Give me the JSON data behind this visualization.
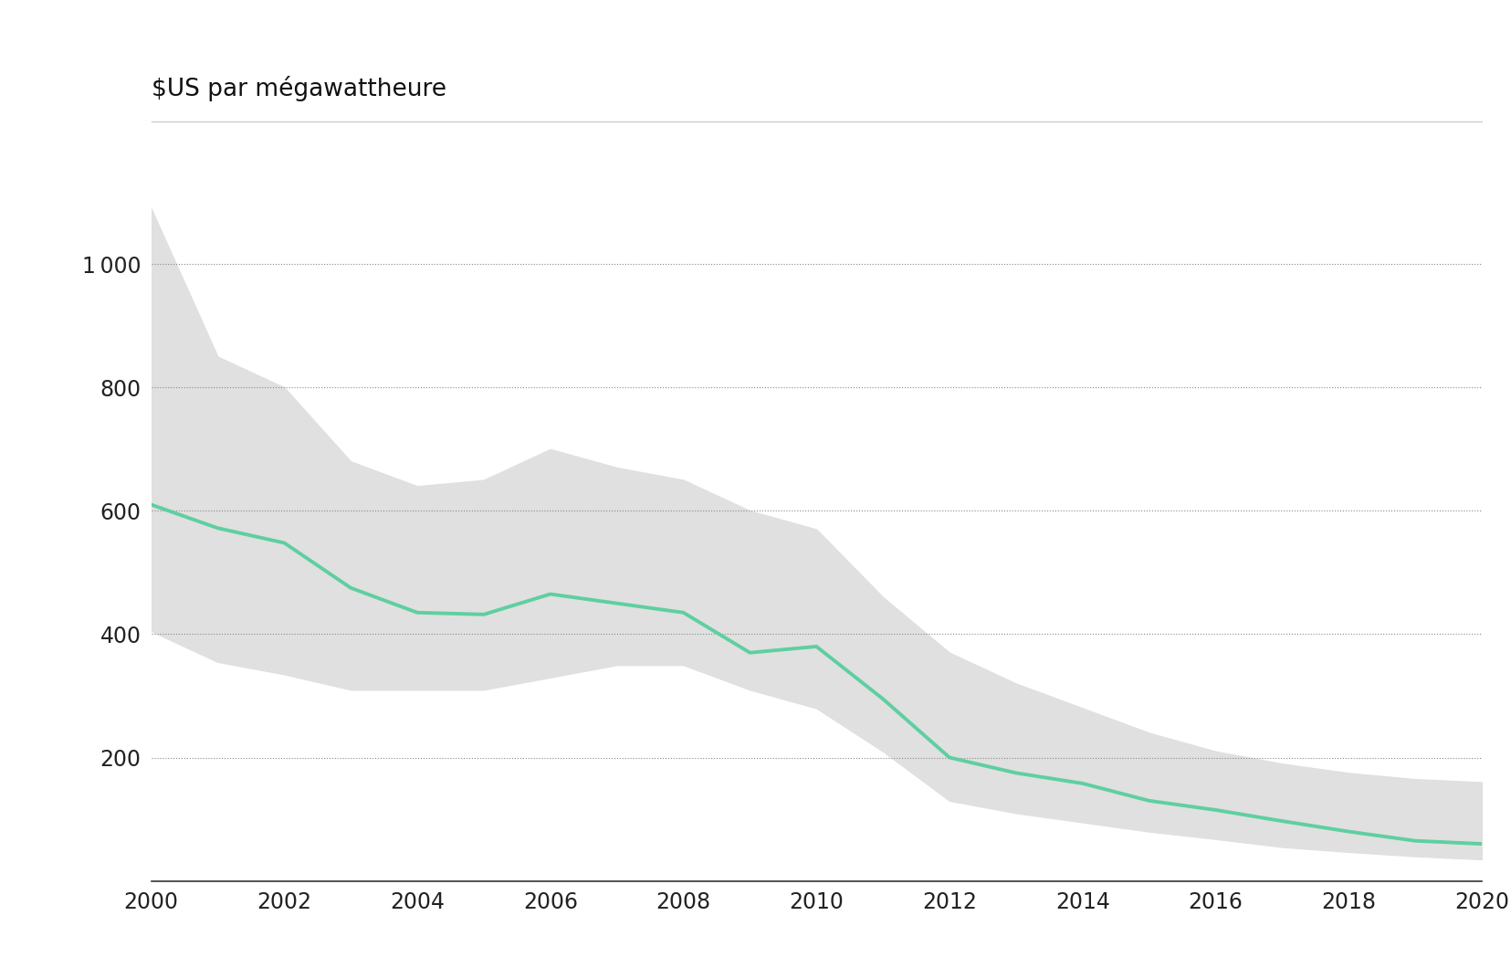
{
  "title": "$US par mégawattheure",
  "title_fontsize": 19,
  "background_color": "#ffffff",
  "line_color": "#5ecfa0",
  "band_color": "#e0e0e0",
  "years": [
    2000,
    2001,
    2002,
    2003,
    2004,
    2005,
    2006,
    2007,
    2008,
    2009,
    2010,
    2011,
    2012,
    2013,
    2014,
    2015,
    2016,
    2017,
    2018,
    2019,
    2020
  ],
  "line_values": [
    610,
    572,
    548,
    475,
    435,
    432,
    465,
    450,
    435,
    370,
    380,
    295,
    200,
    175,
    158,
    130,
    115,
    97,
    80,
    65,
    60
  ],
  "band_upper": [
    1090,
    850,
    800,
    680,
    640,
    650,
    700,
    670,
    650,
    600,
    570,
    460,
    370,
    320,
    280,
    240,
    210,
    190,
    175,
    165,
    160
  ],
  "band_lower": [
    405,
    355,
    335,
    310,
    310,
    310,
    330,
    350,
    350,
    310,
    280,
    210,
    130,
    110,
    95,
    80,
    68,
    55,
    47,
    40,
    35
  ],
  "yticks": [
    200,
    400,
    600,
    800,
    1000
  ],
  "ytick_labels": [
    "200",
    "400",
    "600",
    "800",
    "1 000"
  ],
  "xticks": [
    2000,
    2002,
    2004,
    2006,
    2008,
    2010,
    2012,
    2014,
    2016,
    2018,
    2020
  ],
  "ylim": [
    0,
    1130
  ],
  "xlim": [
    2000,
    2020
  ],
  "grid_color": "#888888",
  "tick_color": "#222222",
  "axis_label_color": "#111111",
  "tick_fontsize": 17,
  "line_width": 2.8,
  "separator_color": "#cccccc"
}
